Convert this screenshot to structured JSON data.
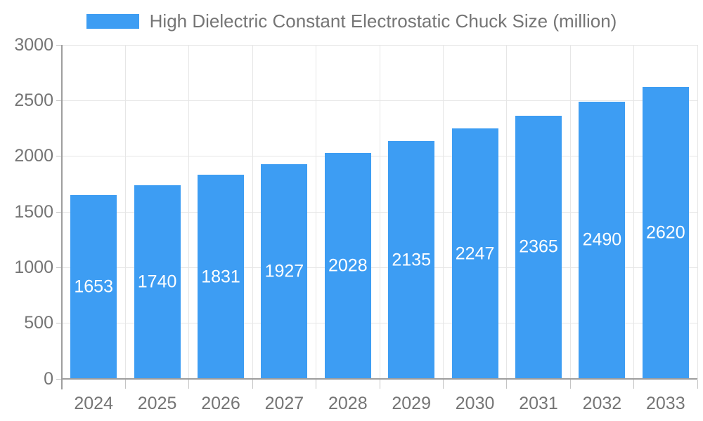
{
  "legend": {
    "label": "High Dielectric Constant Electrostatic Chuck Size (million)"
  },
  "chart_data": {
    "type": "bar",
    "title": "High Dielectric Constant Electrostatic Chuck Size (million)",
    "categories": [
      "2024",
      "2025",
      "2026",
      "2027",
      "2028",
      "2029",
      "2030",
      "2031",
      "2032",
      "2033"
    ],
    "values": [
      1653,
      1740,
      1831,
      1927,
      2028,
      2135,
      2247,
      2365,
      2490,
      2620
    ],
    "xlabel": "",
    "ylabel": "",
    "ylim": [
      0,
      3000
    ],
    "yticks": [
      0,
      500,
      1000,
      1500,
      2000,
      2500,
      3000
    ],
    "grid": true,
    "legend_position": "top-center",
    "bar_value_labels_inside": true,
    "colors": {
      "bar": "#3d9df3",
      "grid": "#e6e6e6",
      "axis": "#9e9e9e",
      "tick": "#c4c4c4",
      "axis_label": "#757575",
      "bar_label": "#ffffff",
      "background": "#ffffff"
    }
  }
}
